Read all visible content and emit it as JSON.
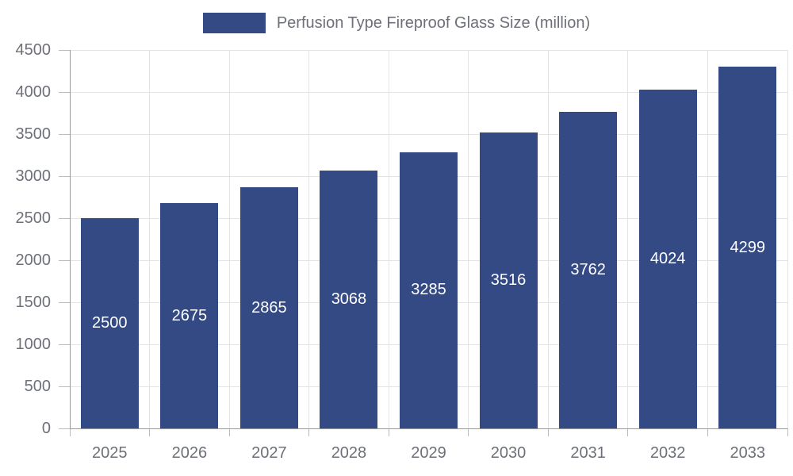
{
  "legend": {
    "label": "Perfusion Type Fireproof Glass Size (million)"
  },
  "chart_data": {
    "type": "bar",
    "title": "",
    "series_name": "Perfusion Type Fireproof Glass Size (million)",
    "categories": [
      "2025",
      "2026",
      "2027",
      "2028",
      "2029",
      "2030",
      "2031",
      "2032",
      "2033"
    ],
    "values": [
      2500,
      2675,
      2865,
      3068,
      3285,
      3516,
      3762,
      4024,
      4299
    ],
    "ylim": [
      0,
      4500
    ],
    "yticks": [
      0,
      500,
      1000,
      1500,
      2000,
      2500,
      3000,
      3500,
      4000,
      4500
    ],
    "xlabel": "",
    "ylabel": "",
    "grid": true,
    "legend_position": "top",
    "value_labels_inside_bars": true,
    "colors": {
      "bar": "#344a85",
      "grid_line": "#e4e4e7",
      "axis_line": "#999999",
      "tick": "#bbbbbb",
      "axis_label": "#6e7079",
      "value_label": "#ffffff",
      "background": "#ffffff"
    }
  }
}
